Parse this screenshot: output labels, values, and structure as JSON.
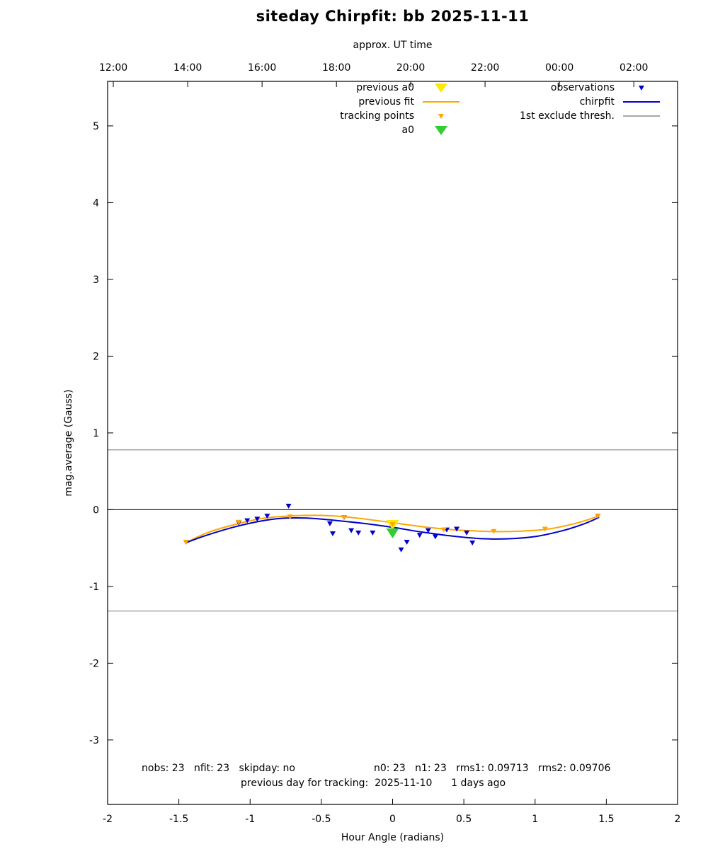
{
  "title": "siteday Chirpfit:  bb  2025-11-11",
  "top_axis_label": "approx. UT time",
  "xlabel": "Hour Angle (radians)",
  "ylabel": "mag.average (Gauss)",
  "legend": {
    "left": [
      {
        "label": "previous a0",
        "marker": "triangle-large",
        "color": "#ffe800"
      },
      {
        "label": "previous fit",
        "marker": "line",
        "color": "#ffa500"
      },
      {
        "label": "tracking points",
        "marker": "triangle-small",
        "color": "#ffa500"
      },
      {
        "label": "a0",
        "marker": "triangle-large",
        "color": "#33cc33"
      }
    ],
    "right": [
      {
        "label": "observations",
        "marker": "triangle-small",
        "color": "#0000cd"
      },
      {
        "label": "chirpfit",
        "marker": "line",
        "color": "#0000cd"
      },
      {
        "label": "1st exclude thresh.",
        "marker": "line",
        "color": "#a8a8a8"
      }
    ]
  },
  "stats": {
    "line1_left": "nobs: 23   nfit: 23   skipday: no",
    "line1_right": "n0: 23   n1: 23   rms1: 0.09713   rms2: 0.09706",
    "line2": "previous day for tracking:  2025-11-10      1 days ago"
  },
  "chart_data": {
    "type": "scatter",
    "title": "siteday Chirpfit:  bb  2025-11-11",
    "xlabel": "Hour Angle (radians)",
    "ylabel": "mag.average (Gauss)",
    "xlim": [
      -2,
      2
    ],
    "ylim": [
      -3.84,
      5.58
    ],
    "xticks": [
      -2,
      -1.5,
      -1,
      -0.5,
      0,
      0.5,
      1,
      1.5,
      2
    ],
    "yticks": [
      -3,
      -2,
      -1,
      0,
      1,
      2,
      3,
      4,
      5
    ],
    "top_axis": {
      "label": "approx. UT time",
      "ticks": [
        {
          "pos": -1.96,
          "label": "12:00"
        },
        {
          "pos": -1.438,
          "label": "14:00"
        },
        {
          "pos": -0.916,
          "label": "16:00"
        },
        {
          "pos": -0.394,
          "label": "18:00"
        },
        {
          "pos": 0.127,
          "label": "20:00"
        },
        {
          "pos": 0.649,
          "label": "22:00"
        },
        {
          "pos": 1.171,
          "label": "00:00"
        },
        {
          "pos": 1.693,
          "label": "02:00"
        }
      ]
    },
    "hlines": {
      "zero": 0,
      "exclude_thresholds": [
        0.78,
        -1.32
      ]
    },
    "colors": {
      "observations": "#0000cd",
      "chirpfit": "#0000cd",
      "previous_fit": "#ffa500",
      "tracking": "#ffa500",
      "previous_a0": "#ffe800",
      "a0": "#33cc33",
      "threshold": "#a8a8a8",
      "axis": "#000000"
    },
    "series": [
      {
        "id": "previous-fit",
        "name": "previous fit",
        "type": "line",
        "color": "#ffa500",
        "width": 2,
        "points": [
          [
            -1.45,
            -0.43
          ],
          [
            -1.3,
            -0.3
          ],
          [
            -1.1,
            -0.19
          ],
          [
            -0.9,
            -0.11
          ],
          [
            -0.7,
            -0.08
          ],
          [
            -0.5,
            -0.075
          ],
          [
            -0.35,
            -0.09
          ],
          [
            -0.2,
            -0.12
          ],
          [
            0,
            -0.17
          ],
          [
            0.2,
            -0.22
          ],
          [
            0.35,
            -0.25
          ],
          [
            0.5,
            -0.27
          ],
          [
            0.7,
            -0.285
          ],
          [
            0.9,
            -0.28
          ],
          [
            1.1,
            -0.25
          ],
          [
            1.3,
            -0.17
          ],
          [
            1.45,
            -0.08
          ]
        ]
      },
      {
        "id": "chirpfit",
        "name": "chirpfit",
        "type": "line",
        "color": "#0000cd",
        "width": 2,
        "points": [
          [
            -1.45,
            -0.43
          ],
          [
            -1.3,
            -0.33
          ],
          [
            -1.1,
            -0.22
          ],
          [
            -0.9,
            -0.14
          ],
          [
            -0.75,
            -0.11
          ],
          [
            -0.6,
            -0.11
          ],
          [
            -0.4,
            -0.14
          ],
          [
            -0.2,
            -0.18
          ],
          [
            0,
            -0.23
          ],
          [
            0.2,
            -0.29
          ],
          [
            0.4,
            -0.34
          ],
          [
            0.6,
            -0.375
          ],
          [
            0.8,
            -0.38
          ],
          [
            1.0,
            -0.35
          ],
          [
            1.2,
            -0.27
          ],
          [
            1.35,
            -0.18
          ],
          [
            1.45,
            -0.1
          ]
        ]
      },
      {
        "id": "observations",
        "name": "observations",
        "type": "points",
        "marker": "triangle-small",
        "color": "#0000cd",
        "points": [
          [
            -1.45,
            -0.42
          ],
          [
            -1.08,
            -0.17
          ],
          [
            -1.02,
            -0.14
          ],
          [
            -0.95,
            -0.12
          ],
          [
            -0.88,
            -0.08
          ],
          [
            -0.73,
            0.05
          ],
          [
            -0.44,
            -0.18
          ],
          [
            -0.42,
            -0.31
          ],
          [
            -0.34,
            -0.1
          ],
          [
            -0.29,
            -0.27
          ],
          [
            -0.24,
            -0.3
          ],
          [
            -0.14,
            -0.3
          ],
          [
            0.0,
            -0.22
          ],
          [
            0.06,
            -0.52
          ],
          [
            0.1,
            -0.42
          ],
          [
            0.19,
            -0.33
          ],
          [
            0.25,
            -0.27
          ],
          [
            0.3,
            -0.35
          ],
          [
            0.38,
            -0.26
          ],
          [
            0.45,
            -0.25
          ],
          [
            0.52,
            -0.3
          ],
          [
            0.56,
            -0.43
          ],
          [
            1.44,
            -0.08
          ]
        ]
      },
      {
        "id": "previous-a0",
        "name": "previous a0",
        "type": "points",
        "marker": "triangle-large",
        "color": "#ffe800",
        "points": [
          [
            0.0,
            -0.19
          ]
        ]
      },
      {
        "id": "a0",
        "name": "a0",
        "type": "points",
        "marker": "triangle-large",
        "color": "#33cc33",
        "points": [
          [
            0.0,
            -0.3
          ]
        ]
      },
      {
        "id": "tracking-points",
        "name": "tracking points",
        "type": "points",
        "marker": "triangle-small",
        "color": "#ffa500",
        "points": [
          [
            -1.45,
            -0.42
          ],
          [
            -1.08,
            -0.16
          ],
          [
            -0.72,
            -0.09
          ],
          [
            -0.34,
            -0.1
          ],
          [
            0.0,
            -0.19
          ],
          [
            0.36,
            -0.26
          ],
          [
            0.71,
            -0.28
          ],
          [
            1.07,
            -0.25
          ],
          [
            1.44,
            -0.08
          ]
        ]
      }
    ],
    "footer_stats": {
      "nobs": 23,
      "nfit": 23,
      "skipday": "no",
      "n0": 23,
      "n1": 23,
      "rms1": 0.09713,
      "rms2": 0.09706,
      "previous_day_for_tracking": "2025-11-10",
      "days_ago": "1 days ago"
    }
  }
}
